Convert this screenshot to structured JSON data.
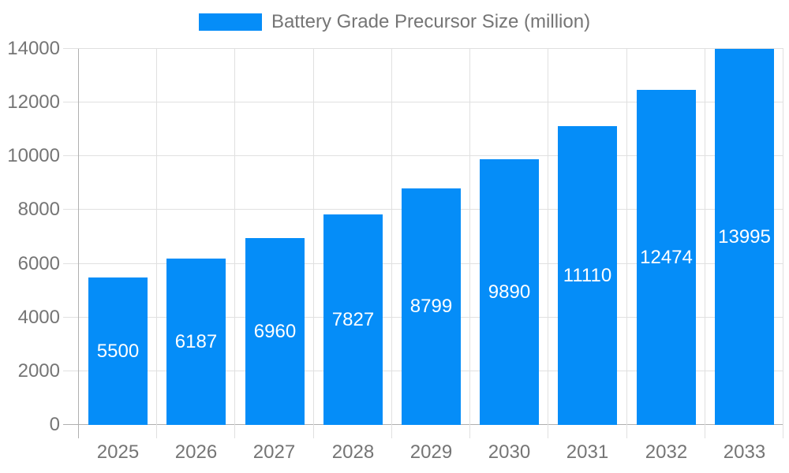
{
  "legend": {
    "label": "Battery Grade Precursor Size (million)"
  },
  "chart_data": {
    "type": "bar",
    "title": "Battery Grade Precursor Size (million)",
    "xlabel": "",
    "ylabel": "",
    "categories": [
      "2025",
      "2026",
      "2027",
      "2028",
      "2029",
      "2030",
      "2031",
      "2032",
      "2033"
    ],
    "values": [
      5500,
      6187,
      6960,
      7827,
      8799,
      9890,
      11110,
      12474,
      13995
    ],
    "value_labels": [
      "5500",
      "6187",
      "6960",
      "7827",
      "8799",
      "9890",
      "11110",
      "12474",
      "13995"
    ],
    "yticks": [
      0,
      2000,
      4000,
      6000,
      8000,
      10000,
      12000,
      14000
    ],
    "ytick_labels": [
      "0",
      "2000",
      "4000",
      "6000",
      "8000",
      "10000",
      "12000",
      "14000"
    ],
    "ylim": [
      0,
      14000
    ],
    "grid": true,
    "legend_position": "top-center",
    "colors": {
      "bar": "#058df8",
      "bar_value_text": "#ffffff",
      "axis_text": "#757575",
      "legend_text": "#757575",
      "grid_line": "#e0e0e0",
      "axis_line": "#b0b0b0",
      "background": "#ffffff"
    }
  }
}
